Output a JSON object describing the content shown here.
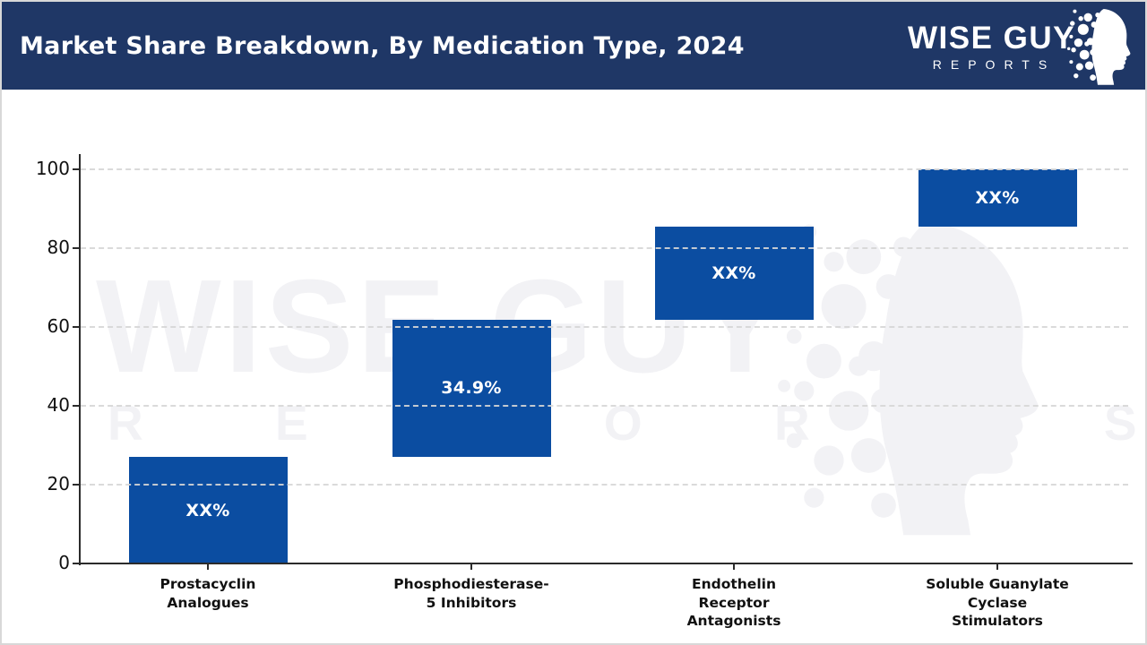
{
  "header": {
    "title": "Market Share Breakdown, By Medication Type, 2024",
    "logo": {
      "line1": "WISE GUY",
      "line2": "REPORTS"
    }
  },
  "watermark": {
    "line1": "WISE GUY",
    "line2": "R E P O R T S"
  },
  "chart_data": {
    "type": "bar",
    "subtype": "waterfall",
    "title": "Market Share Breakdown, By Medication Type, 2024",
    "categories": [
      [
        "Prostacyclin",
        "Analogues"
      ],
      [
        "Phosphodiesterase-",
        "5 Inhibitors"
      ],
      [
        "Endothelin",
        "Receptor",
        "Antagonists"
      ],
      [
        "Soluble Guanylate",
        "Cyclase",
        "Stimulators"
      ]
    ],
    "segments": [
      {
        "start": 0,
        "end": 27,
        "label": "XX%"
      },
      {
        "start": 27,
        "end": 61.9,
        "label": "34.9%"
      },
      {
        "start": 61.9,
        "end": 85.4,
        "label": "XX%"
      },
      {
        "start": 85.4,
        "end": 100,
        "label": "XX%"
      }
    ],
    "ylim": [
      0,
      100
    ],
    "yticks": [
      0,
      20,
      40,
      60,
      80,
      100
    ],
    "xlabel": "",
    "ylabel": "",
    "grid": "horizontal-dashed-above-bars",
    "legend": "none",
    "colors": {
      "header_bg": "#1f3766",
      "header_text": "#ffffff",
      "bar": "#0b4da1",
      "bar_label": "#ffffff",
      "grid": "#d7d7d7",
      "axis": "#2b2b2b",
      "tick_label": "#111111",
      "watermark": "#f2f2f5",
      "frame_border": "#d8d8d8"
    }
  }
}
